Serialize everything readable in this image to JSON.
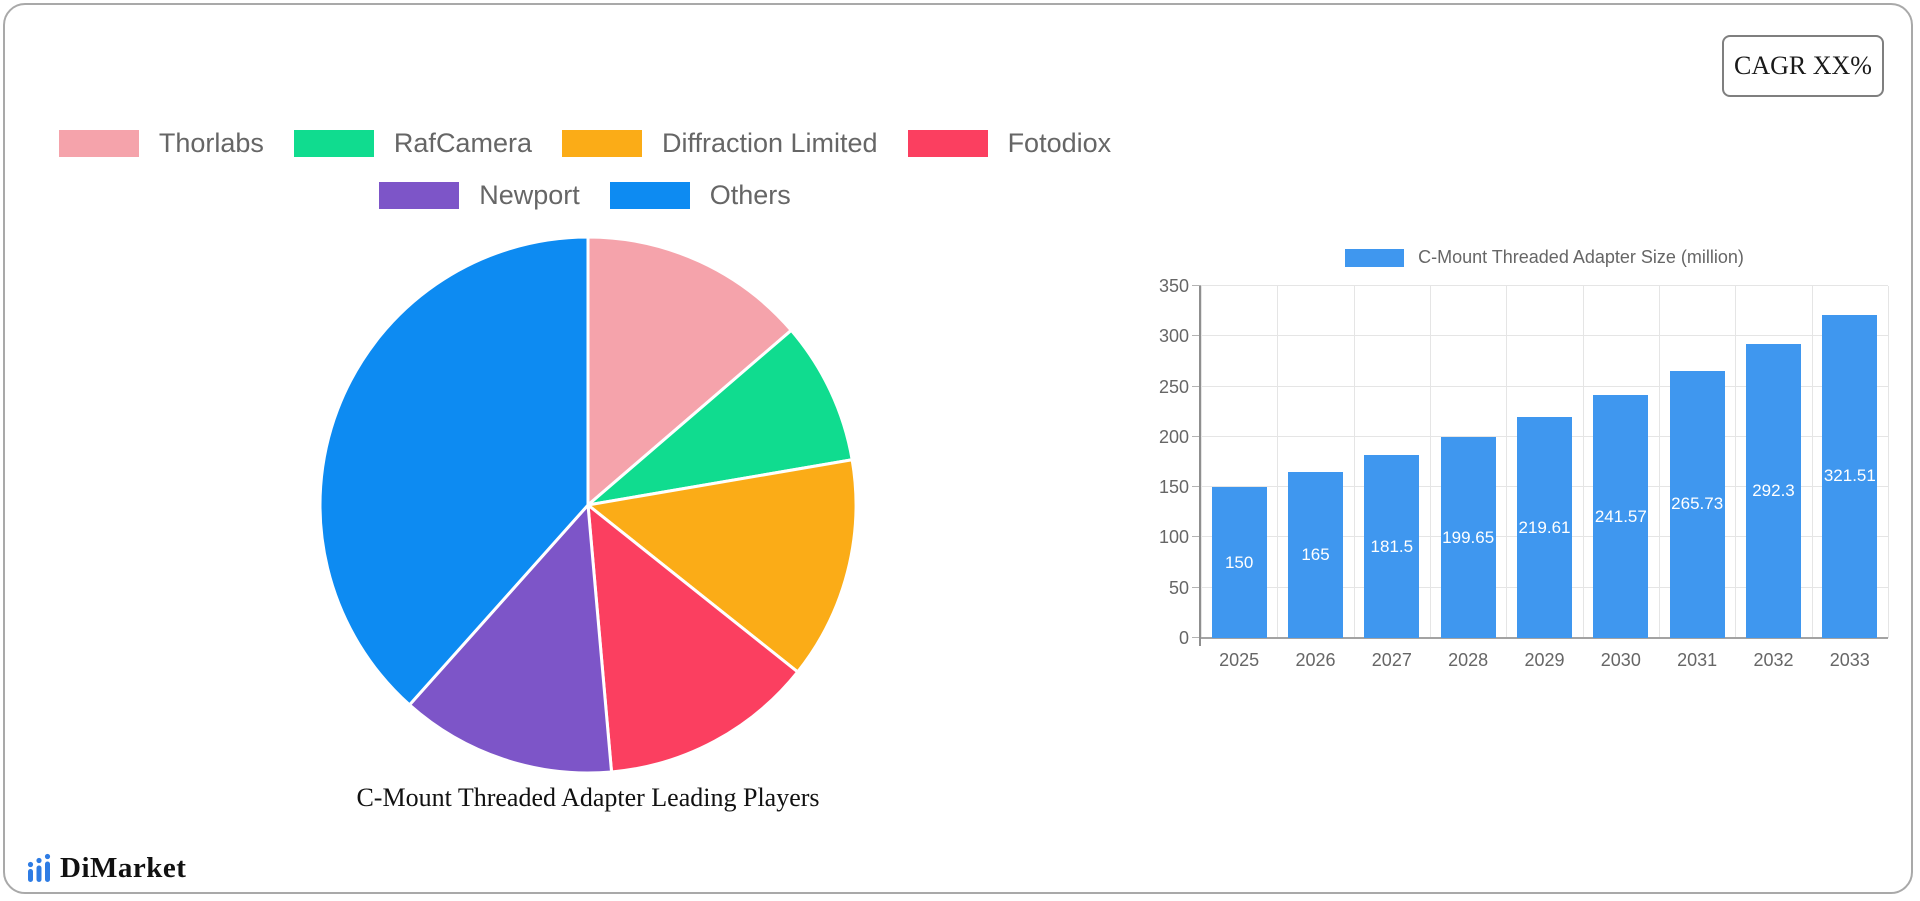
{
  "header": {
    "cagr_label": "CAGR XX%"
  },
  "logo": {
    "brand": "DiMarket"
  },
  "chart_data": [
    {
      "type": "pie",
      "title": "C-Mount Threaded Adapter Leading Players",
      "legend_position": "top",
      "direction": "clockwise",
      "start_angle_deg": -90,
      "slices": [
        {
          "label": "Thorlabs",
          "value_pct": 13.7,
          "color": "#f5a3ab"
        },
        {
          "label": "RafCamera",
          "value_pct": 8.6,
          "color": "#10dc8f"
        },
        {
          "label": "Diffraction Limited",
          "value_pct": 13.4,
          "color": "#fbac17"
        },
        {
          "label": "Fotodiox",
          "value_pct": 12.9,
          "color": "#fb3f60"
        },
        {
          "label": "Newport",
          "value_pct": 13.0,
          "color": "#7d55c8"
        },
        {
          "label": "Others",
          "value_pct": 38.4,
          "color": "#0d8bf2"
        }
      ],
      "legend_rows": [
        [
          0,
          1,
          2,
          3
        ],
        [
          4,
          5
        ]
      ]
    },
    {
      "type": "bar",
      "legend_label": "C-Mount Threaded Adapter Size (million)",
      "legend_position": "top",
      "categories": [
        "2025",
        "2026",
        "2027",
        "2028",
        "2029",
        "2030",
        "2031",
        "2032",
        "2033"
      ],
      "values": [
        150,
        165,
        181.5,
        199.65,
        219.61,
        241.57,
        265.73,
        292.3,
        321.51
      ],
      "bar_color": "#3f97ef",
      "value_label_color": "#ffffff",
      "ylim": [
        0,
        350
      ],
      "yticks": [
        0,
        50,
        100,
        150,
        200,
        250,
        300,
        350
      ],
      "grid": true
    }
  ]
}
